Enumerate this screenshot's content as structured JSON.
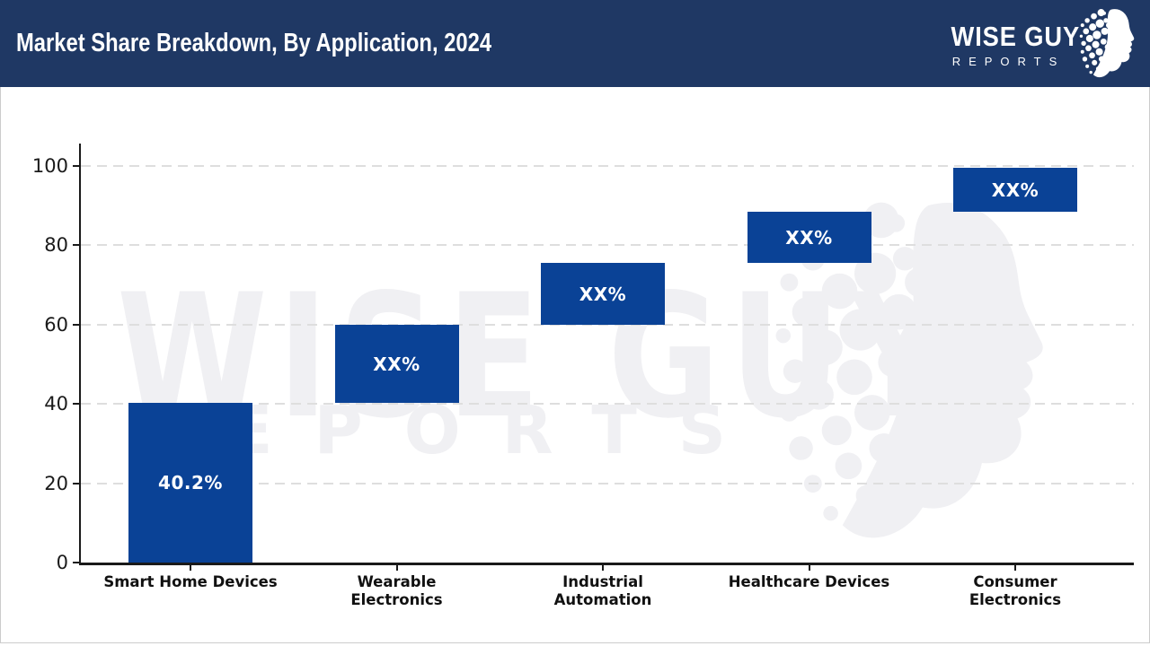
{
  "page": {
    "background": "#ffffff",
    "border_color": "#cccccc"
  },
  "header": {
    "background": "#1f3864",
    "title": "Market Share Breakdown, By Application, 2024",
    "logo": {
      "line1": "WISE GUY",
      "line2": "REPORTS",
      "icon": "dotted-head-profile-icon"
    }
  },
  "watermark": {
    "line1": "WISE GUY",
    "line2": "REPORTS"
  },
  "chart_data": {
    "type": "bar",
    "variant": "waterfall",
    "title": "Market Share Breakdown, By Application, 2024",
    "categories": [
      "Smart Home Devices",
      "Wearable\nElectronics",
      "Industrial\nAutomation",
      "Healthcare Devices",
      "Consumer\nElectronics"
    ],
    "bars": [
      {
        "category": "Smart Home Devices",
        "start": 0,
        "end": 40.2,
        "label": "40.2%"
      },
      {
        "category": "Wearable\nElectronics",
        "start": 40.2,
        "end": 60,
        "label": "XX%"
      },
      {
        "category": "Industrial\nAutomation",
        "start": 60,
        "end": 75.5,
        "label": "XX%"
      },
      {
        "category": "Healthcare Devices",
        "start": 75.5,
        "end": 88.5,
        "label": "XX%"
      },
      {
        "category": "Consumer\nElectronics",
        "start": 88.5,
        "end": 99.5,
        "label": "XX%"
      }
    ],
    "xlabel": "",
    "ylabel": "",
    "yaxis": {
      "ticks": [
        0,
        20,
        40,
        60,
        80,
        100
      ],
      "range": [
        0,
        105.5
      ]
    },
    "grid": {
      "visible": true,
      "style": "dashed",
      "color": "#dedede",
      "direction": "horizontal"
    },
    "legend": null,
    "bar_color": "#0a4296",
    "bar_label_color": "#ffffff",
    "axis_color": "#1a1a1a"
  }
}
